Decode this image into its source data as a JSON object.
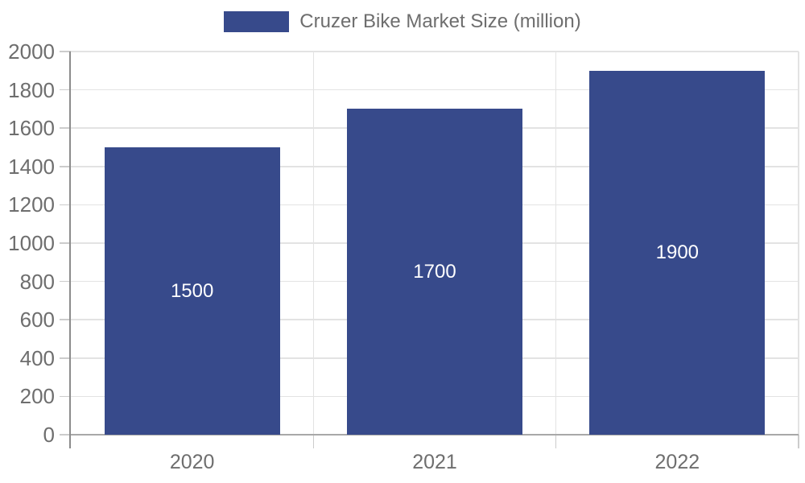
{
  "chart_data": {
    "type": "bar",
    "title": "Cruzer Bike Market Size (million)",
    "legend": [
      "Cruzer Bike Market Size (million)"
    ],
    "legend_position": "top",
    "categories": [
      "2020",
      "2021",
      "2022"
    ],
    "values": [
      1500,
      1700,
      1900
    ],
    "xlabel": "",
    "ylabel": "",
    "ylim": [
      0,
      2000
    ],
    "ytick_step": 200,
    "grid": true,
    "value_label_position": "inside-center",
    "colors": {
      "bar": "#374A8B",
      "value_label": "#ffffff",
      "axis_text": "#6e6e6e",
      "grid_line": "#e3e3e3",
      "tick_line": "#cccccc",
      "y_axis_line": "#8c8c8c",
      "x_axis_line": "#a8a8a8",
      "background": "#ffffff"
    }
  }
}
